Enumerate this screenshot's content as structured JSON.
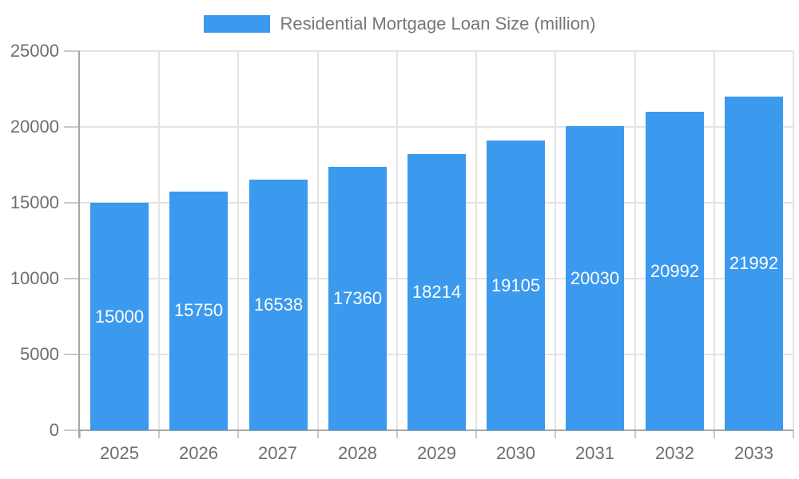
{
  "legend": {
    "label": "Residential Mortgage Loan Size (million)",
    "swatch_color": "#3B99EE"
  },
  "chart_data": {
    "type": "bar",
    "title": "Residential Mortgage Loan Size (million)",
    "categories": [
      "2025",
      "2026",
      "2027",
      "2028",
      "2029",
      "2030",
      "2031",
      "2032",
      "2033"
    ],
    "values": [
      15000,
      15750,
      16538,
      17360,
      18214,
      19105,
      20030,
      20992,
      21992
    ],
    "xlabel": "",
    "ylabel": "",
    "ylim": [
      0,
      25000
    ],
    "yticks": [
      0,
      5000,
      10000,
      15000,
      20000,
      25000
    ],
    "grid": true,
    "legend_position": "top-center",
    "colors": {
      "bar": "#3B99EE",
      "bar_label": "#FFFFFF",
      "axis": "#A6A6A6",
      "gridline": "#E3E3E3",
      "tick": "#C9C9C9",
      "tick_label": "#6E6E6E",
      "legend_text": "#777777",
      "background": "#FFFFFF"
    }
  }
}
